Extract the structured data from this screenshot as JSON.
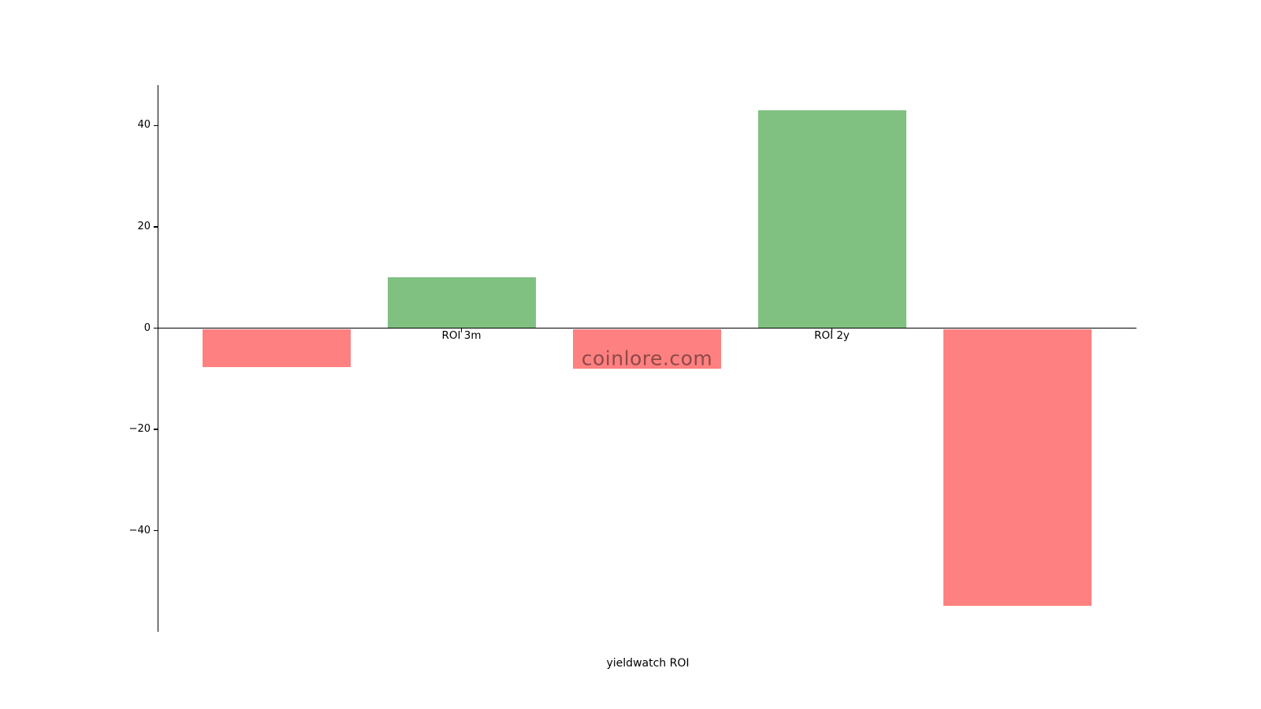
{
  "watermark": {
    "text": "coinlore.com"
  },
  "chart_data": {
    "type": "bar",
    "title": "",
    "xlabel": "yieldwatch ROI",
    "ylabel": "",
    "categories": [
      "",
      "ROI 3m",
      "",
      "ROI 2y",
      ""
    ],
    "values": [
      -7.5,
      10,
      -7.8,
      43,
      -54.7
    ],
    "positive_color": "#80c080",
    "negative_color": "#ff8080",
    "axis_color": "#000000",
    "text_color": "#000000",
    "yticks": [
      40,
      20,
      0,
      -20,
      -40
    ],
    "ylim": [
      -60,
      48
    ],
    "grid": false,
    "legend": null
  }
}
